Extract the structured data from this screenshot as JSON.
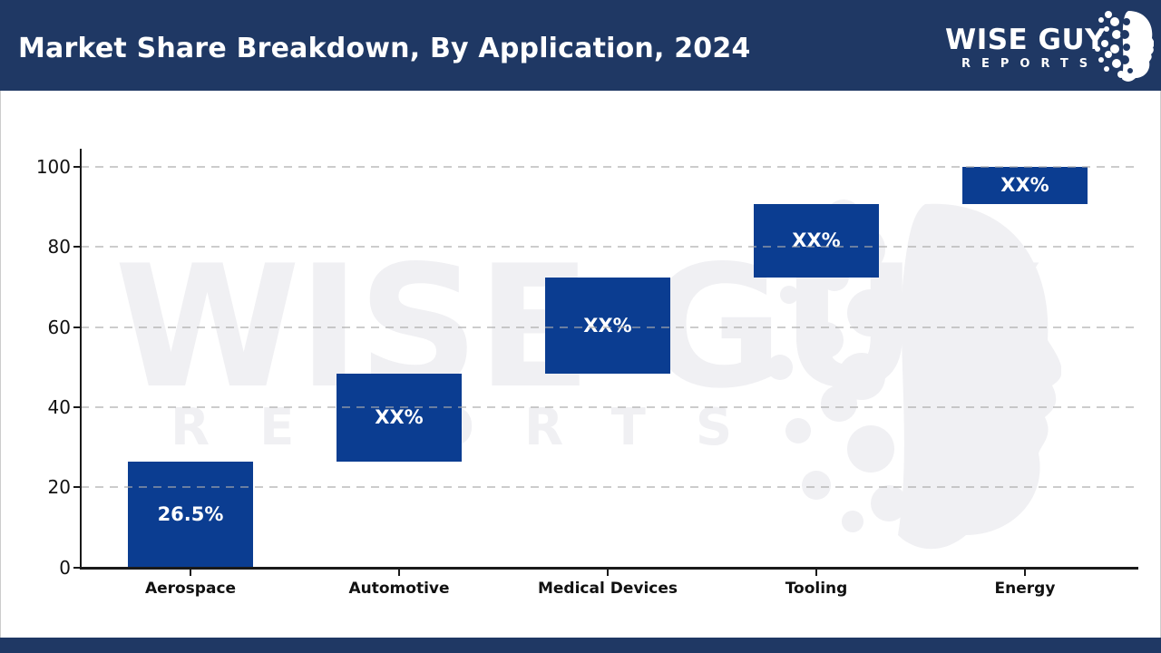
{
  "header": {
    "title": "Market Share Breakdown, By Application, 2024",
    "logo": {
      "line1": "WISE GUY",
      "line2": "REPORTS"
    }
  },
  "watermark": {
    "line1": "WISE GUY",
    "line2": "REPORTS"
  },
  "chart_data": {
    "type": "bar",
    "subtype": "waterfall",
    "title": "Market Share Breakdown, By Application, 2024",
    "categories": [
      "Aerospace",
      "Automotive",
      "Medical Devices",
      "Tooling",
      "Energy"
    ],
    "series": [
      {
        "name": "Market Share",
        "segments": [
          {
            "category": "Aerospace",
            "start": 0,
            "end": 26.5,
            "label": "26.5%"
          },
          {
            "category": "Automotive",
            "start": 26.5,
            "end": 48.4,
            "label": "XX%"
          },
          {
            "category": "Medical Devices",
            "start": 48.4,
            "end": 72.4,
            "label": "XX%"
          },
          {
            "category": "Tooling",
            "start": 72.4,
            "end": 90.7,
            "label": "XX%"
          },
          {
            "category": "Energy",
            "start": 90.7,
            "end": 100,
            "label": "XX%"
          }
        ]
      }
    ],
    "yticks": [
      0,
      20,
      40,
      60,
      80,
      100
    ],
    "ylim": [
      0,
      104
    ],
    "xlabel": "",
    "ylabel": "",
    "legend": "none",
    "grid": "horizontal-dashed",
    "colors": {
      "bar": "#0b3d91",
      "bar_label": "#ffffff",
      "grid": "#cccccc",
      "axis": "#1a1a1a",
      "header_bg": "#1f3864",
      "watermark": "#f0f0f3"
    }
  }
}
